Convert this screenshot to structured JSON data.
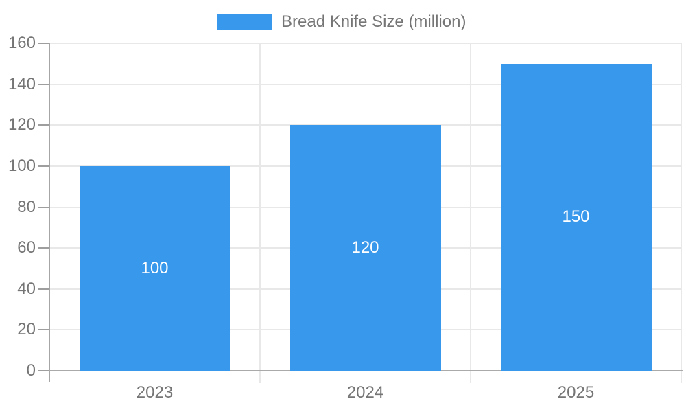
{
  "colors": {
    "accent": "#3898EC",
    "axis": "#aaaaaa",
    "tick": "#9e9e9e",
    "grid": "#e8e8e8",
    "text": "#757575",
    "value_label": "#ffffff",
    "background": "#ffffff"
  },
  "chart_data": {
    "type": "bar",
    "title": "",
    "legend_label": "Bread Knife Size (million)",
    "legend_position": "top",
    "categories": [
      "2023",
      "2024",
      "2025"
    ],
    "series": [
      {
        "name": "Bread Knife Size (million)",
        "values": [
          100,
          120,
          150
        ]
      }
    ],
    "values": [
      100,
      120,
      150
    ],
    "data_labels": [
      "100",
      "120",
      "150"
    ],
    "xlabel": "",
    "ylabel": "",
    "ylim": [
      0,
      160
    ],
    "y_ticks": [
      0,
      20,
      40,
      60,
      80,
      100,
      120,
      140,
      160
    ],
    "grid": true
  }
}
